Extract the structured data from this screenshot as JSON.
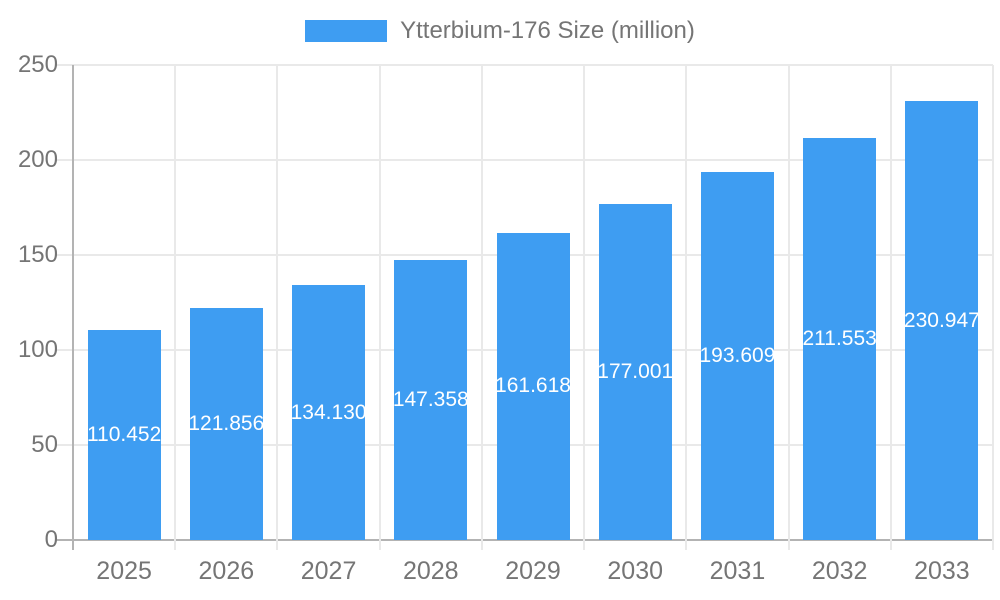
{
  "chart_data": {
    "type": "bar",
    "title": "Ytterbium-176 Size (million)",
    "categories": [
      "2025",
      "2026",
      "2027",
      "2028",
      "2029",
      "2030",
      "2031",
      "2032",
      "2033"
    ],
    "series": [
      {
        "name": "Ytterbium-176 Size (million)",
        "values": [
          110.452,
          121.856,
          134.13,
          147.358,
          161.618,
          177.001,
          193.609,
          211.553,
          230.947
        ],
        "value_labels": [
          "110.452",
          "121.856",
          "134.130",
          "147.358",
          "161.618",
          "177.001",
          "193.609",
          "211.553",
          "230.947"
        ]
      }
    ],
    "xlabel": "",
    "ylabel": "",
    "ylim": [
      0,
      250
    ],
    "yticks": [
      "0",
      "50",
      "100",
      "150",
      "200",
      "250"
    ],
    "grid": true,
    "legend_position": "top-center",
    "colors": {
      "bar": "#3E9DF2",
      "gridline": "#E9E9E9",
      "axis_line": "#B3B3B3",
      "tick_label": "#757575",
      "bar_label": "#FFFFFF",
      "background": "#FFFFFF"
    }
  }
}
